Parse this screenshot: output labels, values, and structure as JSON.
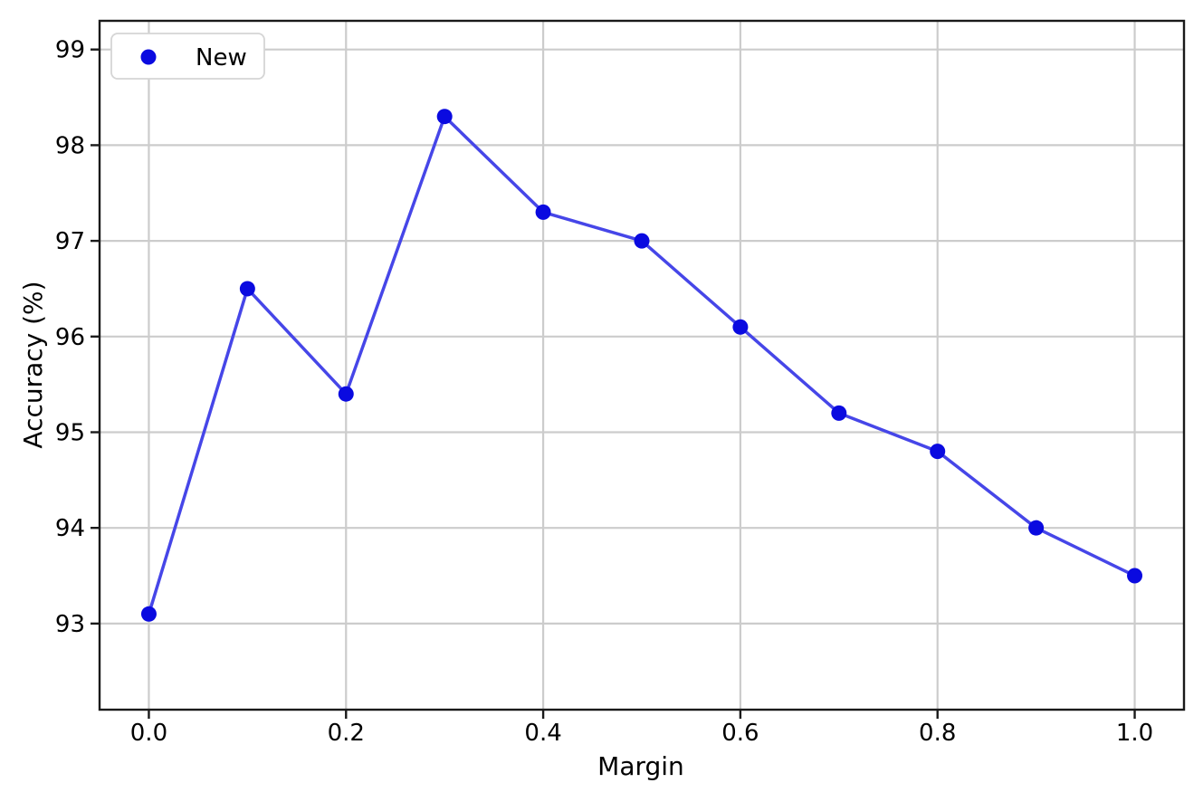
{
  "chart_data": {
    "type": "line",
    "title": "",
    "xlabel": "Margin",
    "ylabel": "Accuracy (%)",
    "x": [
      0.0,
      0.1,
      0.2,
      0.3,
      0.4,
      0.5,
      0.6,
      0.7,
      0.8,
      0.9,
      1.0
    ],
    "series": [
      {
        "name": "New",
        "values": [
          93.1,
          96.5,
          95.4,
          98.3,
          97.3,
          97.0,
          96.1,
          95.2,
          94.8,
          94.0,
          93.5
        ]
      }
    ],
    "xlim": [
      -0.05,
      1.05
    ],
    "ylim": [
      92.1,
      99.3
    ],
    "xticks": [
      0.0,
      0.2,
      0.4,
      0.6,
      0.8,
      1.0
    ],
    "xtick_labels": [
      "0.0",
      "0.2",
      "0.4",
      "0.6",
      "0.8",
      "1.0"
    ],
    "yticks": [
      93,
      94,
      95,
      96,
      97,
      98,
      99
    ],
    "ytick_labels": [
      "93",
      "94",
      "95",
      "96",
      "97",
      "98",
      "99"
    ],
    "grid": true,
    "legend_position": "upper-left",
    "colors": {
      "line": "#4646e8",
      "marker": "#0a0ae0",
      "grid": "#cccccc",
      "spine": "#1a1a1a",
      "legend_border": "#d5d5d5",
      "legend_bg": "#ffffff",
      "text": "#000000"
    }
  }
}
